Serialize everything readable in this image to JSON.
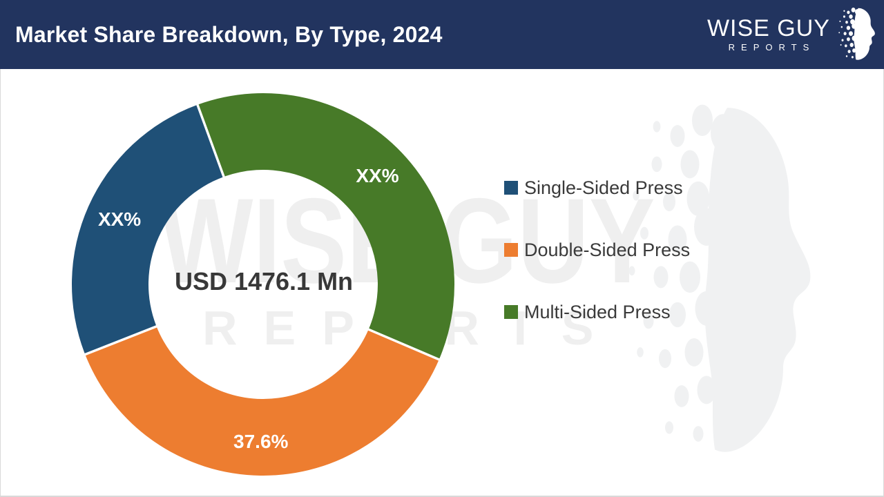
{
  "header": {
    "title": "Market Share Breakdown, By Type, 2024",
    "bg_color": "#22345F",
    "logo": {
      "wordmark": "WISE GUY",
      "subtext": "REPORTS"
    }
  },
  "watermark": {
    "wordmark": "WISE GUY",
    "subtext": "REPORTS",
    "color": "#EFEFEF"
  },
  "chart_data": {
    "type": "pie",
    "donut": true,
    "title": "Market Share Breakdown, By Type, 2024",
    "center_label": "USD 1476.1 Mn",
    "legend_position": "right",
    "start_angle_deg": -111.5,
    "draw_order": [
      0,
      2,
      1
    ],
    "segments": [
      {
        "label": "Single-Sided Press",
        "display_value": "XX%",
        "value_pct_est": 25.4,
        "color": "#1F5077"
      },
      {
        "label": "Double-Sided Press",
        "display_value": "37.6%",
        "value_pct_est": 37.6,
        "color": "#ED7D30"
      },
      {
        "label": "Multi-Sided Press",
        "display_value": "XX%",
        "value_pct_est": 37.0,
        "color": "#477A28"
      }
    ]
  }
}
